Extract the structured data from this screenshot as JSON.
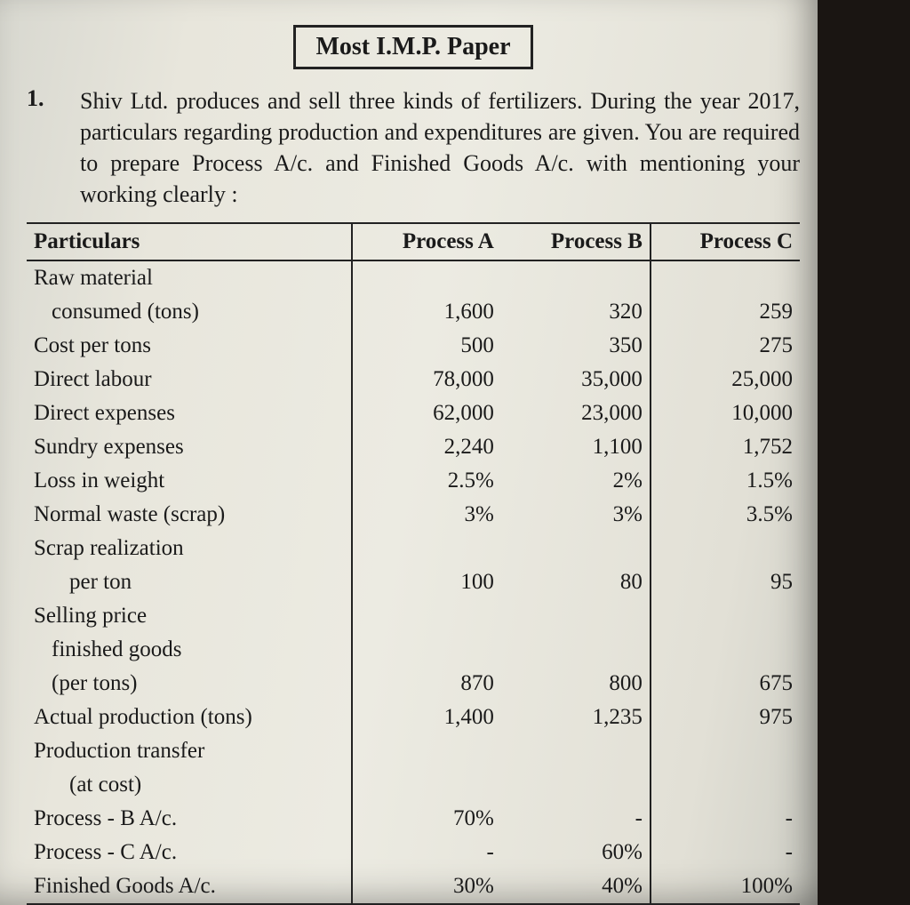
{
  "header": {
    "title": "Most I.M.P. Paper"
  },
  "question": {
    "number": "1.",
    "text": "Shiv Ltd. produces and sell three kinds of fertilizers. During the year 2017, particulars regarding production and expenditures are given. You are required to prepare Process A/c. and Finished Goods A/c. with mentioning your working clearly :"
  },
  "table": {
    "columns": [
      "Particulars",
      "Process A",
      "Process B",
      "Process C"
    ],
    "rows": [
      {
        "label": "Raw material",
        "indent": 0,
        "a": "",
        "b": "",
        "c": ""
      },
      {
        "label": "consumed (tons)",
        "indent": 1,
        "a": "1,600",
        "b": "320",
        "c": "259"
      },
      {
        "label": "Cost per tons",
        "indent": 0,
        "a": "500",
        "b": "350",
        "c": "275"
      },
      {
        "label": "Direct labour",
        "indent": 0,
        "a": "78,000",
        "b": "35,000",
        "c": "25,000"
      },
      {
        "label": "Direct expenses",
        "indent": 0,
        "a": "62,000",
        "b": "23,000",
        "c": "10,000"
      },
      {
        "label": "Sundry expenses",
        "indent": 0,
        "a": "2,240",
        "b": "1,100",
        "c": "1,752"
      },
      {
        "label": "Loss in weight",
        "indent": 0,
        "a": "2.5%",
        "b": "2%",
        "c": "1.5%"
      },
      {
        "label": "Normal waste (scrap)",
        "indent": 0,
        "a": "3%",
        "b": "3%",
        "c": "3.5%"
      },
      {
        "label": "Scrap realization",
        "indent": 0,
        "a": "",
        "b": "",
        "c": ""
      },
      {
        "label": "per ton",
        "indent": 2,
        "a": "100",
        "b": "80",
        "c": "95"
      },
      {
        "label": "Selling price",
        "indent": 0,
        "a": "",
        "b": "",
        "c": ""
      },
      {
        "label": "finished goods",
        "indent": 1,
        "a": "",
        "b": "",
        "c": ""
      },
      {
        "label": "(per tons)",
        "indent": 1,
        "a": "870",
        "b": "800",
        "c": "675"
      },
      {
        "label": "Actual production (tons)",
        "indent": 0,
        "a": "1,400",
        "b": "1,235",
        "c": "975"
      },
      {
        "label": "Production transfer",
        "indent": 0,
        "a": "",
        "b": "",
        "c": ""
      },
      {
        "label": "(at cost)",
        "indent": 2,
        "a": "",
        "b": "",
        "c": ""
      },
      {
        "label": "Process - B A/c.",
        "indent": 0,
        "a": "70%",
        "b": "-",
        "c": "-"
      },
      {
        "label": "Process - C A/c.",
        "indent": 0,
        "a": "-",
        "b": "60%",
        "c": "-"
      },
      {
        "label": "Finished Goods A/c.",
        "indent": 0,
        "a": "30%",
        "b": "40%",
        "c": "100%"
      }
    ]
  }
}
